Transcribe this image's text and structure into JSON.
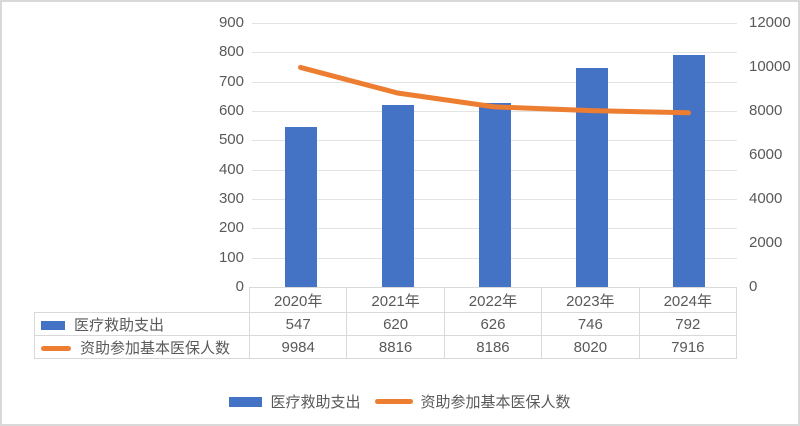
{
  "chart_data": {
    "type": "bar+line",
    "categories": [
      "2020年",
      "2021年",
      "2022年",
      "2023年",
      "2024年"
    ],
    "series": [
      {
        "name": "医疗救助支出",
        "type": "bar",
        "axis": "left",
        "color": "#4472C4",
        "values": [
          547,
          620,
          626,
          746,
          792
        ]
      },
      {
        "name": "资助参加基本医保人数",
        "type": "line",
        "axis": "right",
        "color": "#ED7D31",
        "values": [
          9984,
          8816,
          8186,
          8020,
          7916
        ]
      }
    ],
    "left_axis": {
      "min": 0,
      "max": 900,
      "step": 100,
      "ticks": [
        0,
        100,
        200,
        300,
        400,
        500,
        600,
        700,
        800,
        900
      ]
    },
    "right_axis": {
      "min": 0,
      "max": 12000,
      "step": 2000,
      "ticks": [
        0,
        2000,
        4000,
        6000,
        8000,
        10000,
        12000
      ]
    },
    "grid": "horizontal",
    "legend_position": "bottom",
    "data_table_visible": true,
    "title": "",
    "xlabel": "",
    "ylabel": ""
  },
  "colors": {
    "bar": "#4472C4",
    "line": "#ED7D31",
    "text": "#595959",
    "gridline": "#e3e3e3",
    "table_border": "#d9d9d9",
    "frame_border": "#d9d9d9",
    "background": "#ffffff"
  }
}
